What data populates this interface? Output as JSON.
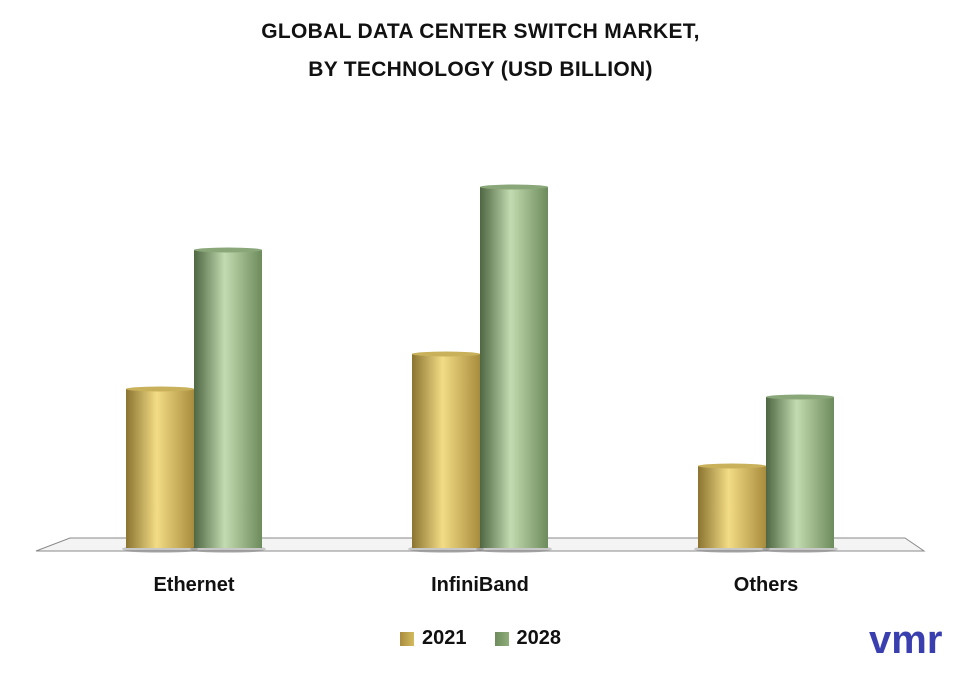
{
  "title_line1": "GLOBAL DATA CENTER SWITCH MARKET,",
  "title_line2": "BY TECHNOLOGY (USD BILLION)",
  "logo_text": "vmr",
  "colors": {
    "s2021": "#d4bb5e",
    "s2028": "#8fae7a",
    "logo": "#3a3fb0"
  },
  "chart_data": {
    "type": "bar",
    "title": "GLOBAL DATA CENTER SWITCH MARKET, BY TECHNOLOGY (USD BILLION)",
    "categories": [
      "Ethernet",
      "InfiniBand",
      "Others"
    ],
    "series": [
      {
        "name": "2021",
        "values": [
          15.9,
          19.4,
          8.2
        ]
      },
      {
        "name": "2028",
        "values": [
          29.8,
          36.1,
          15.1
        ]
      }
    ],
    "ylim": [
      0,
      40
    ],
    "grid": false,
    "legend": "bottom"
  }
}
